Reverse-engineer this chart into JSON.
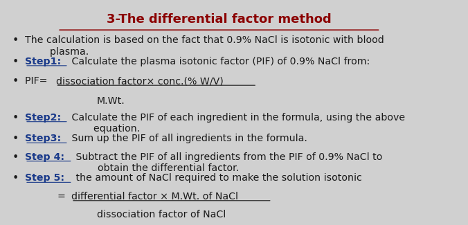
{
  "title": "3-The differential factor method",
  "title_color": "#8B0000",
  "title_fontsize": 13,
  "background_color": "#d0d0d0",
  "text_color": "#1a1a1a",
  "bullet_color": "#1a1a1a",
  "underline_color": "#1a3a8a",
  "body_fontsize": 10.2,
  "lines": [
    {
      "type": "bullet",
      "parts": [
        {
          "text": "The calculation is based on the fact that 0.9% NaCl is isotonic with blood\n        plasma.",
          "style": "normal",
          "color": "#1a1a1a"
        }
      ]
    },
    {
      "type": "bullet",
      "parts": [
        {
          "text": "Step1:",
          "style": "underline_bold",
          "color": "#1a3a8a"
        },
        {
          "text": " Calculate the plasma isotonic factor (PIF) of 0.9% NaCl from:",
          "style": "normal",
          "color": "#1a1a1a"
        }
      ]
    },
    {
      "type": "bullet",
      "parts": [
        {
          "text": "PIF= ",
          "style": "normal",
          "color": "#1a1a1a"
        },
        {
          "text": "dissociation factor× conc.(% W/V)",
          "style": "underline",
          "color": "#1a1a1a"
        }
      ]
    },
    {
      "type": "indent",
      "parts": [
        {
          "text": "M.Wt.",
          "style": "normal",
          "color": "#1a1a1a"
        }
      ]
    },
    {
      "type": "bullet",
      "parts": [
        {
          "text": "Step2:",
          "style": "underline_bold",
          "color": "#1a3a8a"
        },
        {
          "text": " Calculate the PIF of each ingredient in the formula, using the above\n        equation.",
          "style": "normal",
          "color": "#1a1a1a"
        }
      ]
    },
    {
      "type": "bullet",
      "parts": [
        {
          "text": "Step3:",
          "style": "underline_bold",
          "color": "#1a3a8a"
        },
        {
          "text": " Sum up the PIF of all ingredients in the formula.",
          "style": "normal",
          "color": "#1a1a1a"
        }
      ]
    },
    {
      "type": "bullet",
      "parts": [
        {
          "text": "Step 4:",
          "style": "underline_bold",
          "color": "#1a3a8a"
        },
        {
          "text": " Subtract the PIF of all ingredients from the PIF of 0.9% NaCl to\n        obtain the differential factor.",
          "style": "normal",
          "color": "#1a1a1a"
        }
      ]
    },
    {
      "type": "bullet",
      "parts": [
        {
          "text": "Step 5:",
          "style": "underline_bold",
          "color": "#1a3a8a"
        },
        {
          "text": " the amount of NaCl required to make the solution isotonic",
          "style": "normal",
          "color": "#1a1a1a"
        }
      ]
    },
    {
      "type": "indent2",
      "parts": [
        {
          "text": "= ",
          "style": "normal",
          "color": "#1a1a1a"
        },
        {
          "text": "differential factor × M.Wt. of NaCl",
          "style": "underline",
          "color": "#1a1a1a"
        }
      ]
    },
    {
      "type": "indent3",
      "parts": [
        {
          "text": "dissociation factor of NaCl",
          "style": "normal",
          "color": "#1a1a1a"
        }
      ]
    }
  ]
}
